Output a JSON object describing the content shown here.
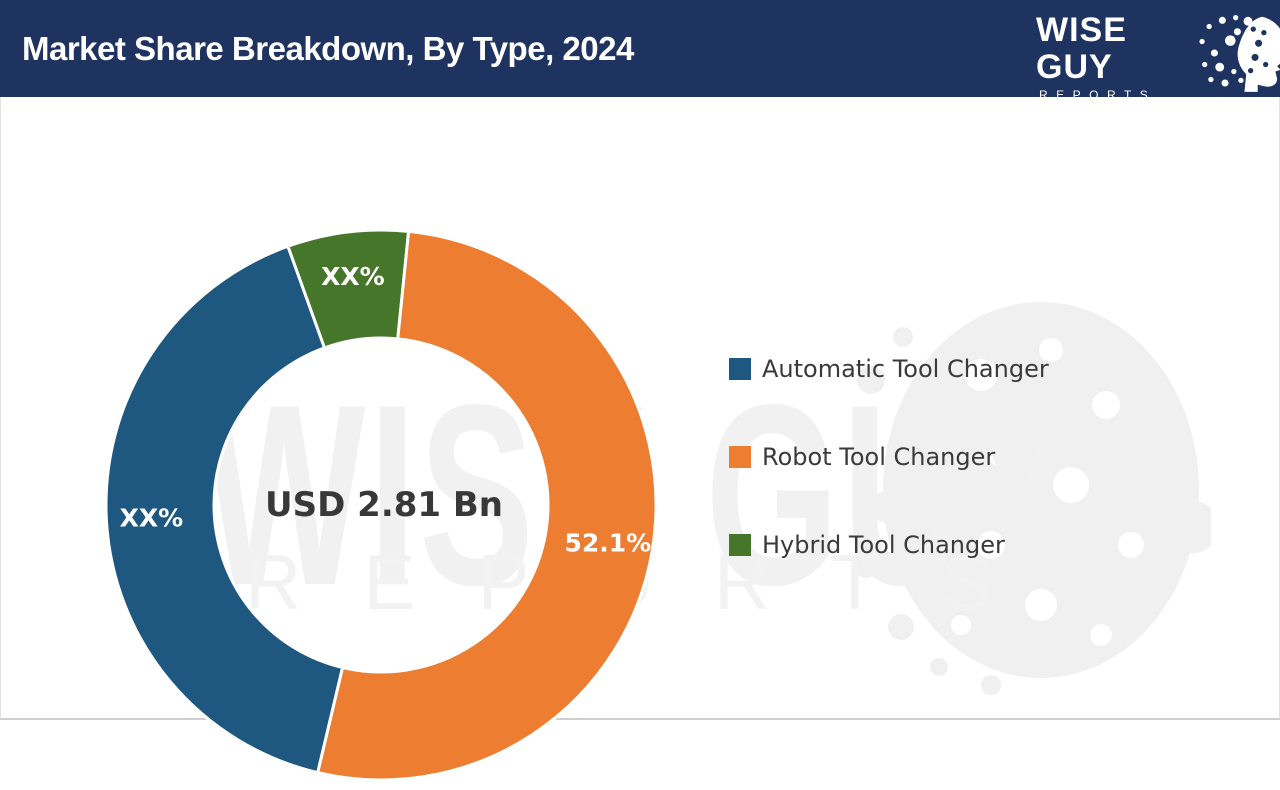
{
  "header": {
    "title": "Market Share Breakdown, By Type, 2024",
    "logo": {
      "line1": "WISE GUY",
      "line2": "REPORTS"
    }
  },
  "watermark": {
    "line1": "WISE GUY",
    "line2": "REPORTS"
  },
  "chart_data": {
    "type": "donut",
    "title": "Market Share Breakdown, By Type, 2024",
    "center_label": "USD 2.81 Bn",
    "start_angle_deg": -19.8,
    "segments": [
      {
        "label": "Hybrid Tool Changer",
        "display_label": "XX%",
        "arc_pct_est": 7.1,
        "color": "#467629"
      },
      {
        "label": "Robot Tool Changer",
        "display_label": "52.1%",
        "arc_pct_est": 52.1,
        "color": "#ed7d31"
      },
      {
        "label": "Automatic Tool Changer",
        "display_label": "XX%",
        "arc_pct_est": 40.8,
        "color": "#1e577f"
      }
    ],
    "legend": [
      {
        "label": "Automatic Tool Changer",
        "color": "#1e577f"
      },
      {
        "label": "Robot Tool Changer",
        "color": "#ed7d31"
      },
      {
        "label": "Hybrid Tool Changer",
        "color": "#467629"
      }
    ],
    "colors": {
      "blue": "#1e577f",
      "orange": "#ed7d31",
      "green": "#467629",
      "header_navy": "#1f3360",
      "watermark_gray": "#f1f1f1",
      "text_dark": "#3a3a3a"
    },
    "legend_position": "right"
  }
}
